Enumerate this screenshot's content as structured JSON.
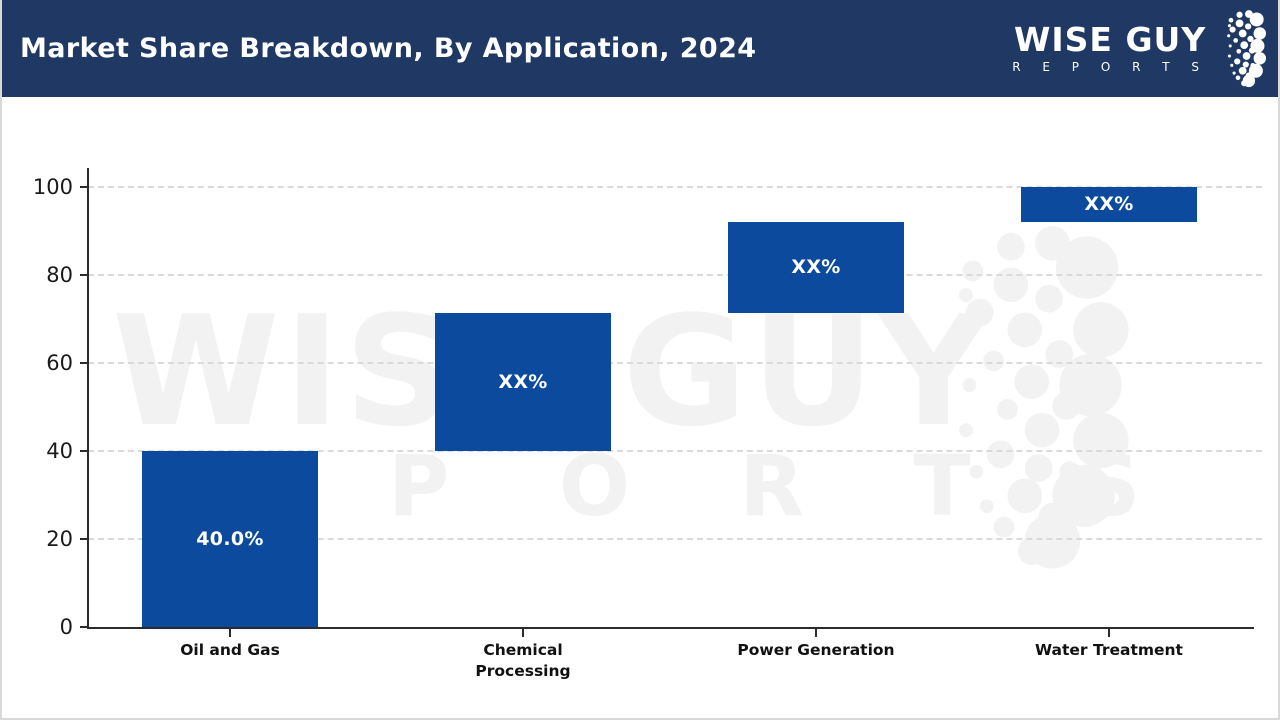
{
  "header": {
    "title": "Market Share Breakdown, By Application, 2024",
    "logo": {
      "line1": "WISE GUY",
      "line2": "R E P O R T S",
      "face_icon": "dotted-face-profile"
    }
  },
  "watermark": {
    "line1": "WISE GUY",
    "line2": "P O R T S",
    "face_icon": "dotted-face-profile"
  },
  "colors": {
    "header_bg": "#1f3864",
    "bar": "#0c4a9e",
    "watermark": "#f2f2f3",
    "axis": "#2b2b2b",
    "gridline": "#dadada"
  },
  "chart_data": {
    "type": "bar",
    "subtype": "waterfall",
    "title": "Market Share Breakdown, By Application, 2024",
    "categories": [
      "Oil and Gas",
      "Chemical\nProcessing",
      "Power Generation",
      "Water Treatment"
    ],
    "segments": [
      {
        "start": 0,
        "end": 40
      },
      {
        "start": 40,
        "end": 71.4
      },
      {
        "start": 71.4,
        "end": 92.1
      },
      {
        "start": 92.1,
        "end": 100
      }
    ],
    "values_masked": [
      40.0,
      null,
      null,
      null
    ],
    "bar_labels": [
      "40.0%",
      "XX%",
      "XX%",
      "XX%"
    ],
    "xlabel": "",
    "ylabel": "",
    "yticks": [
      0,
      20,
      40,
      60,
      80,
      100
    ],
    "ylim": [
      0,
      100
    ],
    "grid": "horizontal-dashed",
    "legend": "none"
  }
}
